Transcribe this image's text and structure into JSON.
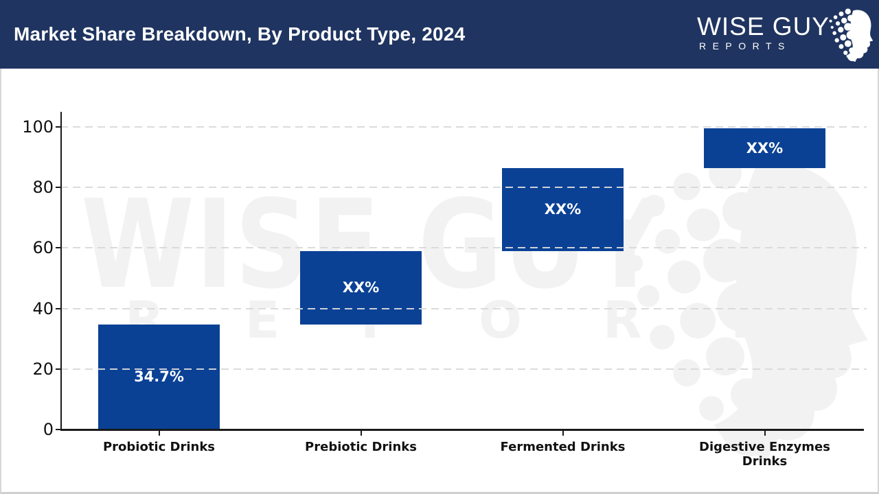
{
  "header": {
    "title": "Market Share Breakdown, By Product Type, 2024",
    "logo": {
      "line1": "WISE GUY",
      "line2": "REPORTS",
      "icon": "dotted-face-profile"
    }
  },
  "watermark": {
    "line1": "WISE GUY",
    "line2": "REPORTS",
    "icon": "dotted-face-profile"
  },
  "colors": {
    "header_bg": "#1f3460",
    "bar_blue": "#0a4195",
    "grid_gray": "#d9d9d9",
    "axis_black": "#1a1a1a",
    "watermark_gray": "#f2f2f2",
    "frame_border": "#d6d6d6"
  },
  "chart_data": {
    "type": "bar",
    "subtype": "waterfall",
    "title": "Market Share Breakdown, By Product Type, 2024",
    "categories": [
      "Probiotic Drinks",
      "Prebiotic Drinks",
      "Fermented Drinks",
      "Digestive Enzymes Drinks"
    ],
    "segments": [
      {
        "category": "Probiotic Drinks",
        "start": 0,
        "end": 34.7,
        "label": "34.7%"
      },
      {
        "category": "Prebiotic Drinks",
        "start": 34.7,
        "end": 59.0,
        "label": "XX%"
      },
      {
        "category": "Fermented Drinks",
        "start": 59.0,
        "end": 86.5,
        "label": "XX%"
      },
      {
        "category": "Digestive Enzymes Drinks",
        "start": 86.5,
        "end": 99.5,
        "label": "XX%"
      }
    ],
    "xlabel": "",
    "ylabel": "",
    "yticks": [
      0,
      20,
      40,
      60,
      80,
      100
    ],
    "ylim": [
      0,
      105
    ],
    "grid": "dashed horizontal, drawn over bars",
    "legend": "none",
    "bar_value_label_color": "#ffffff"
  }
}
